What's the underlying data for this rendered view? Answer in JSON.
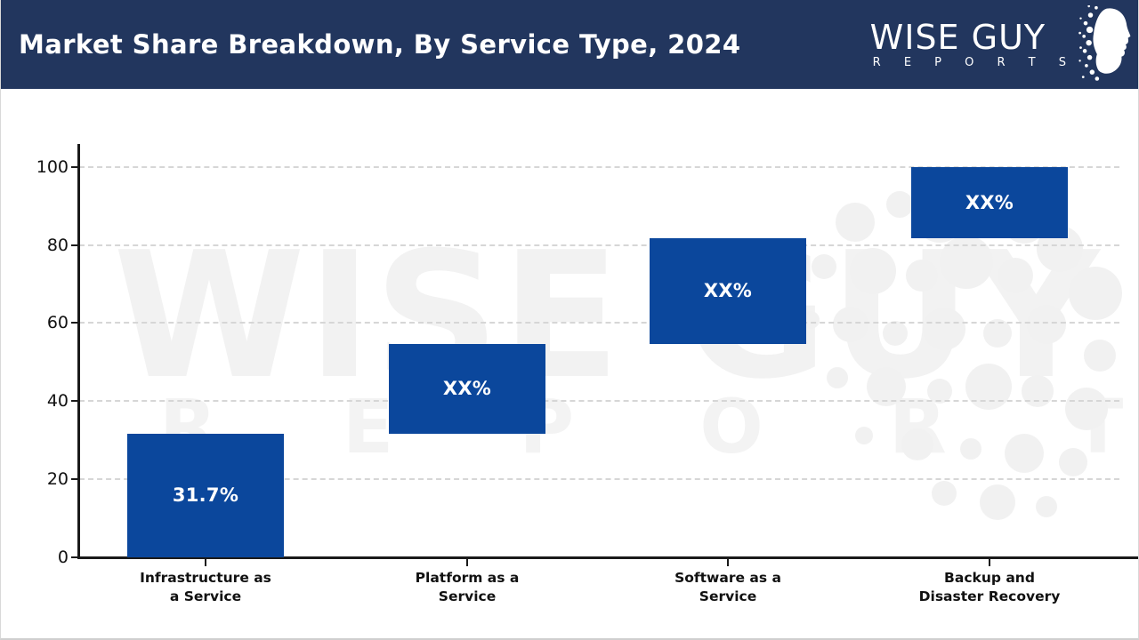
{
  "header": {
    "title": "Market Share Breakdown, By Service Type, 2024",
    "bg_color": "#22365e"
  },
  "brand": {
    "line1": "WISE GUY",
    "line2": "R E P O R T S"
  },
  "watermark": {
    "line1": "WISE GUY",
    "line2": "R E P O R T S"
  },
  "chart_data": {
    "type": "bar",
    "variant": "waterfall",
    "title": "Market Share Breakdown, By Service Type, 2024",
    "unit": "%",
    "categories": [
      {
        "name": "Infrastructure as a Service",
        "lines": [
          "Infrastructure as",
          "a Service"
        ]
      },
      {
        "name": "Platform as a Service",
        "lines": [
          "Platform as a",
          "Service"
        ]
      },
      {
        "name": "Software as a Service",
        "lines": [
          "Software as a",
          "Service"
        ]
      },
      {
        "name": "Backup and Disaster Recovery",
        "lines": [
          "Backup and",
          "Disaster Recovery"
        ]
      }
    ],
    "segments": [
      {
        "category": "Infrastructure as a Service",
        "start": 0,
        "end": 31.7,
        "label": "31.7%"
      },
      {
        "category": "Platform as a Service",
        "start": 31.7,
        "end": 54.6,
        "label": "XX%"
      },
      {
        "category": "Software as a Service",
        "start": 54.6,
        "end": 81.8,
        "label": "XX%"
      },
      {
        "category": "Backup and Disaster Recovery",
        "start": 81.8,
        "end": 100,
        "label": "XX%"
      }
    ],
    "yticks": [
      0,
      20,
      40,
      60,
      80,
      100
    ],
    "ylim": [
      0,
      105.8
    ],
    "grid": {
      "horizontal": true,
      "style": "dashed",
      "color": "#d6d6d6"
    },
    "bar_color": "#0b479c",
    "bar_label_color": "#ffffff",
    "axis_color": "#1a1a1a",
    "legend": "none"
  }
}
